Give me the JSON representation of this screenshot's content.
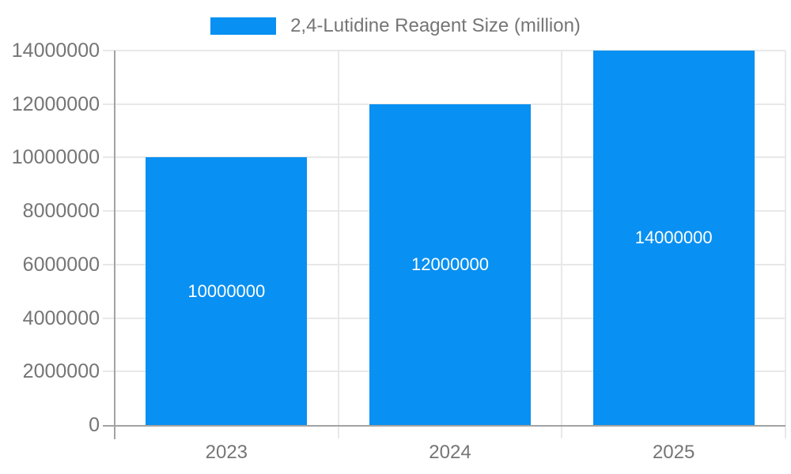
{
  "legend": {
    "label": "2,4-Lutidine Reagent Size (million)"
  },
  "colors": {
    "bar": "#0890f2",
    "grid": "#e8e8e8",
    "axis": "#a3a3a3",
    "text": "#757575",
    "bar_label": "#ffffff",
    "background": "#ffffff"
  },
  "chart_data": {
    "type": "bar",
    "title": "",
    "xlabel": "",
    "ylabel": "",
    "categories": [
      "2023",
      "2024",
      "2025"
    ],
    "values": [
      10000000,
      12000000,
      14000000
    ],
    "bar_labels": [
      "10000000",
      "12000000",
      "14000000"
    ],
    "series": [
      {
        "name": "2,4-Lutidine Reagent Size (million)",
        "values": [
          10000000,
          12000000,
          14000000
        ]
      }
    ],
    "ylim": [
      0,
      14000000
    ],
    "ytick_step": 2000000,
    "ytick_labels": [
      "0",
      "2000000",
      "4000000",
      "6000000",
      "8000000",
      "10000000",
      "12000000",
      "14000000"
    ],
    "grid": true,
    "legend_position": "top"
  }
}
